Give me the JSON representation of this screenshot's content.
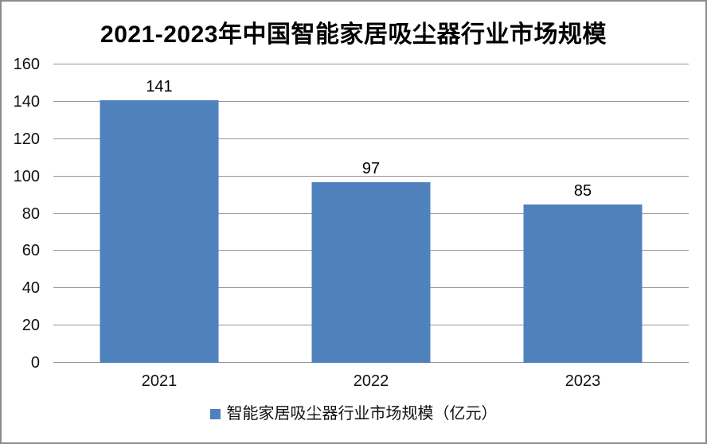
{
  "chart_data": {
    "type": "bar",
    "title": "2021-2023年中国智能家居吸尘器行业市场规模",
    "categories": [
      "2021",
      "2022",
      "2023"
    ],
    "values": [
      141,
      97,
      85
    ],
    "data_labels": [
      "141",
      "97",
      "85"
    ],
    "series_name": "智能家居吸尘器行业市场规模（亿元）",
    "xlabel": "",
    "ylabel": "",
    "ylim": [
      0,
      160
    ],
    "ytick_step": 20,
    "yticks": [
      "0",
      "20",
      "40",
      "60",
      "80",
      "100",
      "120",
      "140",
      "160"
    ],
    "grid": true,
    "legend_position": "bottom",
    "bar_color": "#4F81BD",
    "gridline_color": "#969696",
    "border_color": "#8C8C8C",
    "background_color": "#FFFFFF",
    "text_color": "#000000"
  },
  "legend": {
    "marker": "blue-square",
    "label": "智能家居吸尘器行业市场规模（亿元）"
  }
}
